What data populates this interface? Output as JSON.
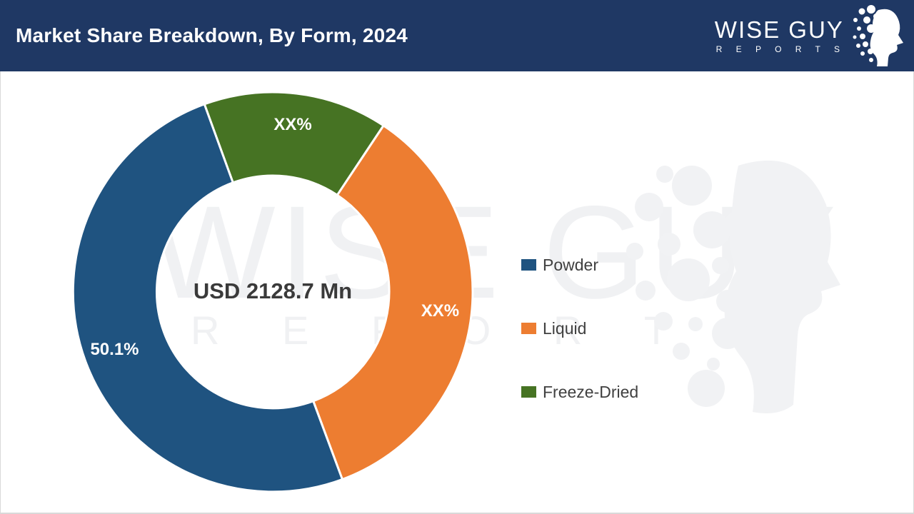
{
  "header": {
    "title": "Market Share Breakdown, By Form, 2024",
    "bg_color": "#1f3864",
    "logo": {
      "line1": "WISE GUY",
      "line2": "R E P O R T S"
    }
  },
  "watermark": {
    "line1": "WISE GUY",
    "line2": "R E P O R T S"
  },
  "chart_data": {
    "type": "pie",
    "subtype": "donut",
    "title": "Market Share Breakdown, By Form, 2024",
    "center_label": "USD 2128.7 Mn",
    "start_angle_deg": -20,
    "label_radius": 236,
    "slices": [
      {
        "name": "Freeze-Dried",
        "label": "XX%",
        "value": 14.9,
        "color": "#467323"
      },
      {
        "name": "Liquid",
        "label": "XX%",
        "value": 35.0,
        "color": "#ed7d31"
      },
      {
        "name": "Powder",
        "label": "50.1%",
        "value": 50.1,
        "color": "#1f5380"
      }
    ],
    "legend": [
      {
        "name": "Powder",
        "color": "#1f5380"
      },
      {
        "name": "Liquid",
        "color": "#ed7d31"
      },
      {
        "name": "Freeze-Dried",
        "color": "#467323"
      }
    ],
    "legend_position": "right"
  }
}
